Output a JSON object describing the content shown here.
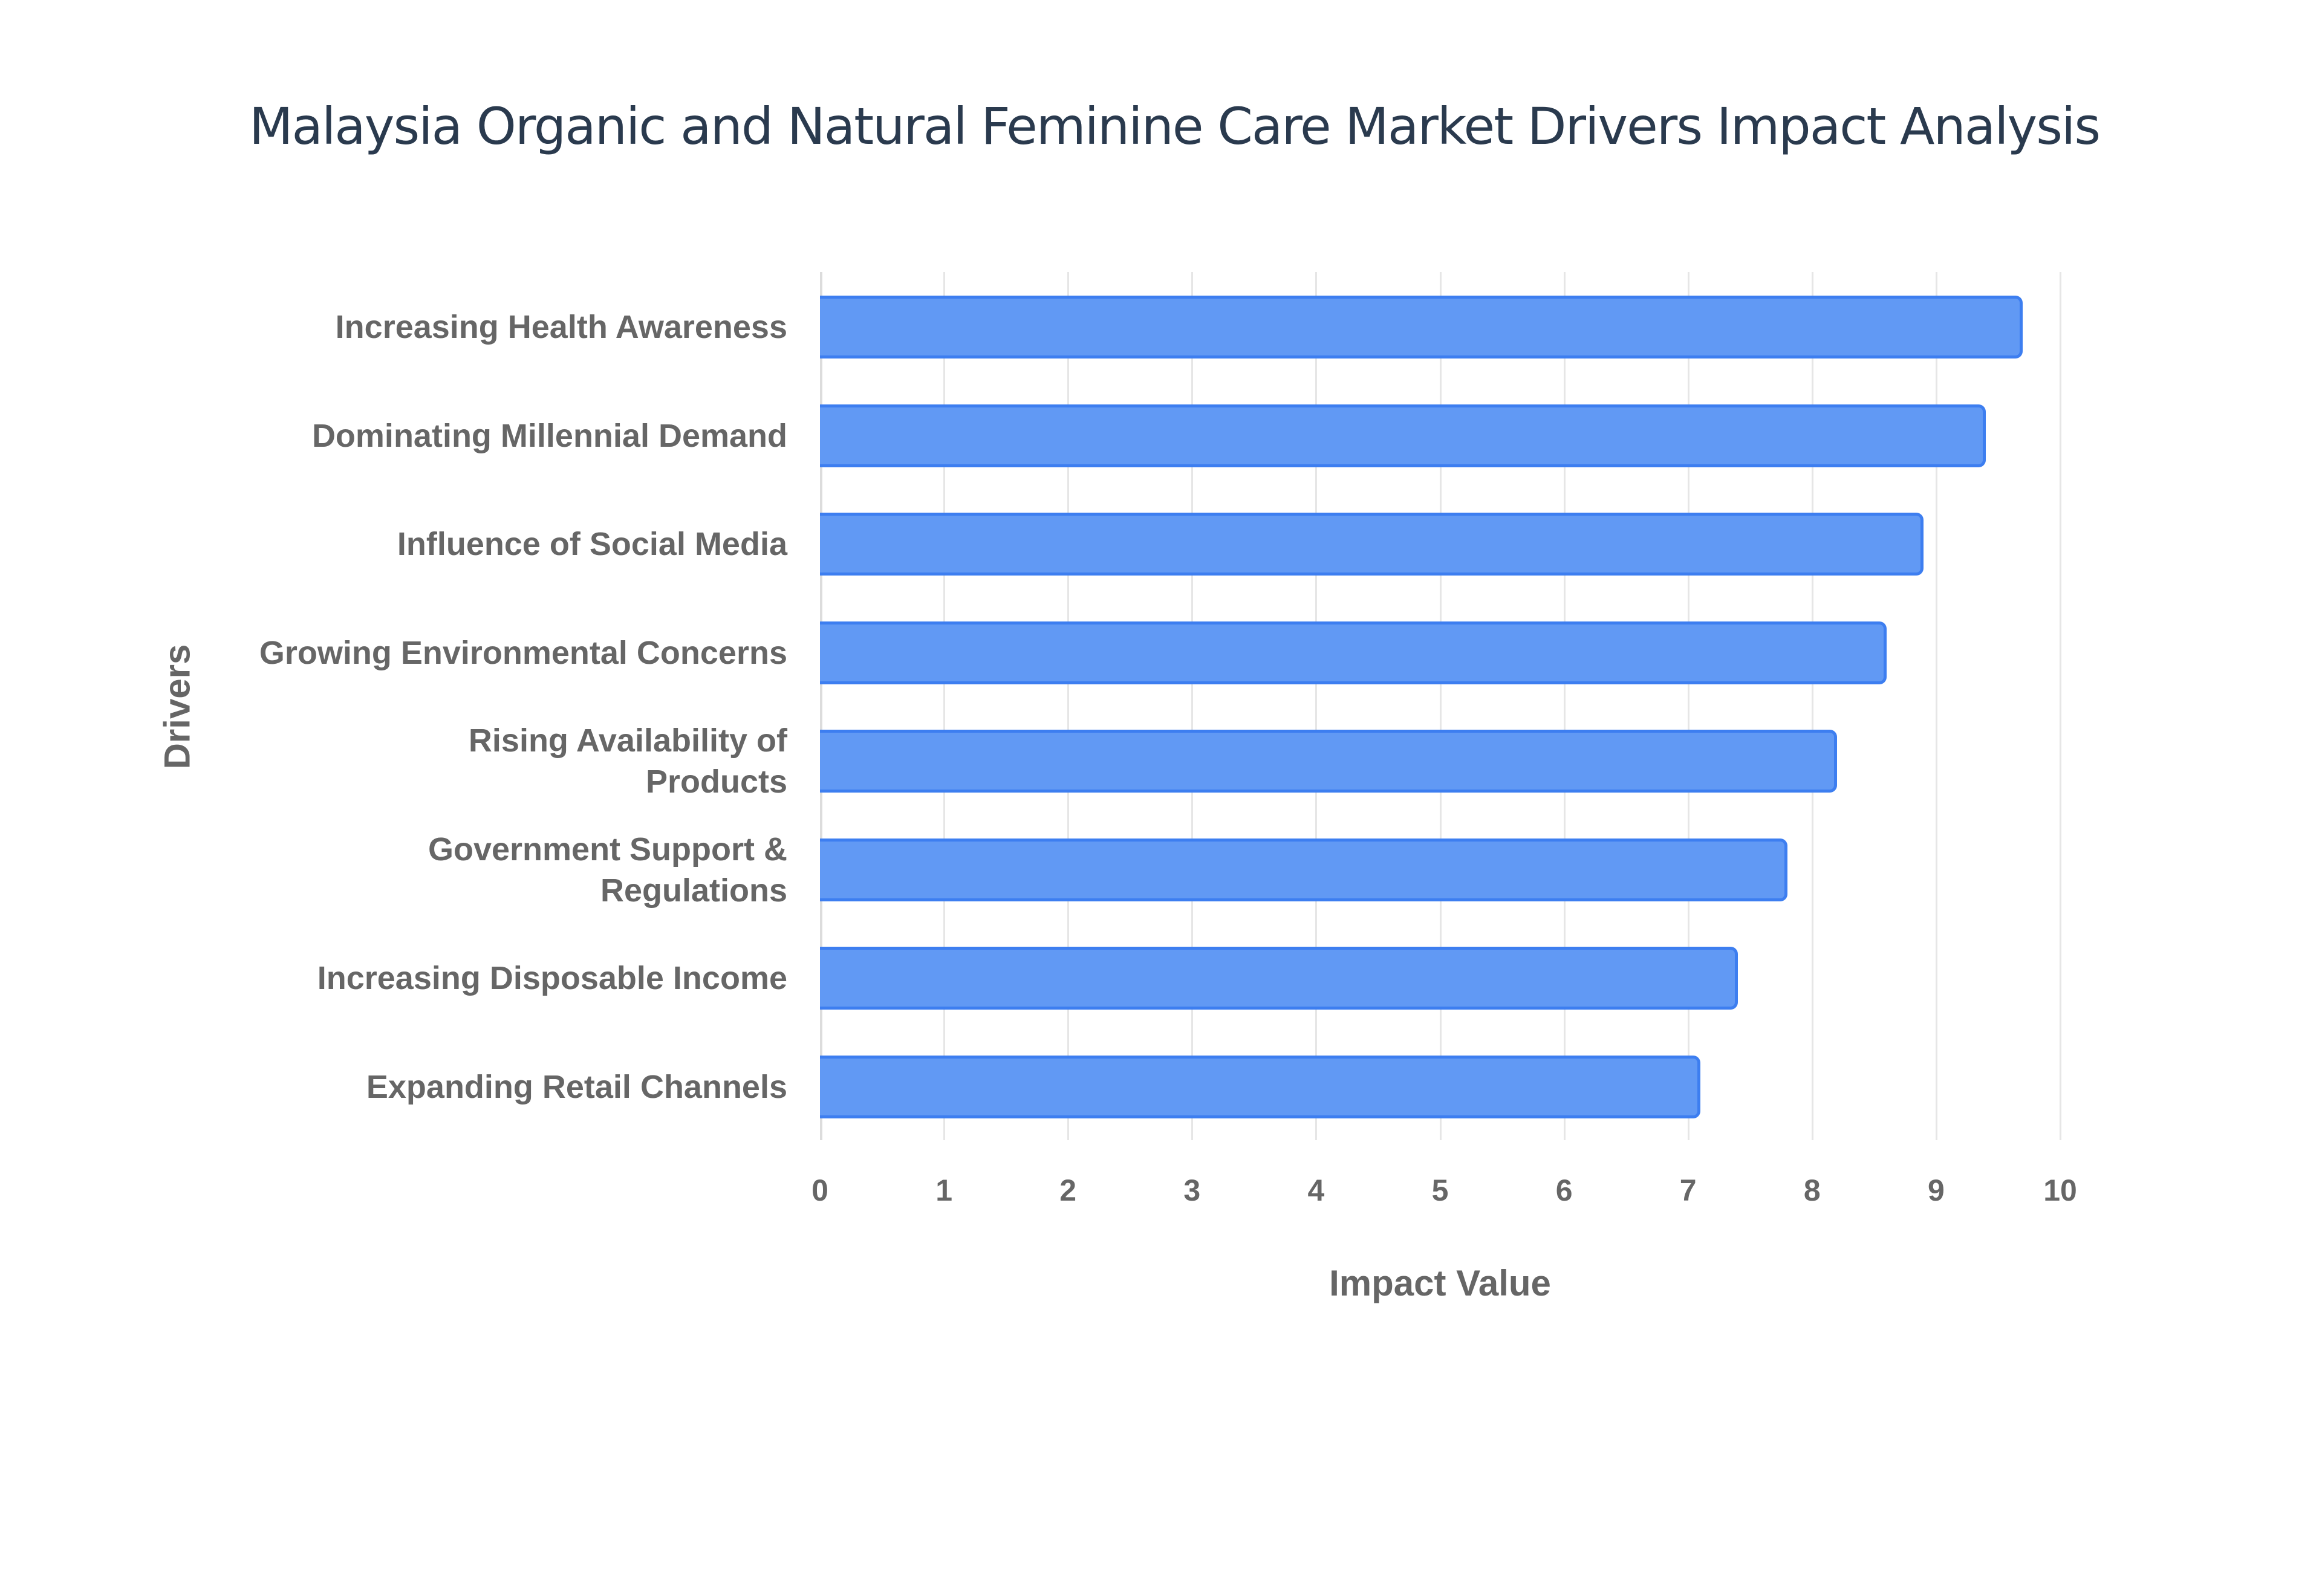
{
  "title": "Malaysia Organic and Natural Feminine Care Market Drivers Impact Analysis",
  "colors": {
    "bar_fill": "#6199f4",
    "bar_border": "#3d7ef0",
    "text": "#666666",
    "title": "#2a3a4e",
    "grid": "#e6e6e6"
  },
  "chart_data": {
    "type": "bar",
    "orientation": "horizontal",
    "title": "Malaysia Organic and Natural Feminine Care Market Drivers Impact Analysis",
    "xlabel": "Impact Value",
    "ylabel": "Drivers",
    "xlim": [
      0,
      10
    ],
    "x_ticks": [
      "0",
      "1",
      "2",
      "3",
      "4",
      "5",
      "6",
      "7",
      "8",
      "9",
      "10"
    ],
    "grid": true,
    "legend": "none",
    "categories": [
      "Increasing Health Awareness",
      "Dominating Millennial Demand",
      "Influence of Social Media",
      "Growing Environmental Concerns",
      "Rising Availability of Products",
      "Government Support & Regulations",
      "Increasing Disposable Income",
      "Expanding Retail Channels"
    ],
    "values": [
      9.7,
      9.4,
      8.9,
      8.6,
      8.2,
      7.8,
      7.4,
      7.1
    ]
  },
  "labels_display": [
    [
      "Increasing Health Awareness"
    ],
    [
      "Dominating Millennial Demand"
    ],
    [
      "Influence of Social Media"
    ],
    [
      "Growing Environmental Concerns"
    ],
    [
      "Rising Availability of",
      "Products"
    ],
    [
      "Government Support &",
      "Regulations"
    ],
    [
      "Increasing Disposable Income"
    ],
    [
      "Expanding Retail Channels"
    ]
  ]
}
